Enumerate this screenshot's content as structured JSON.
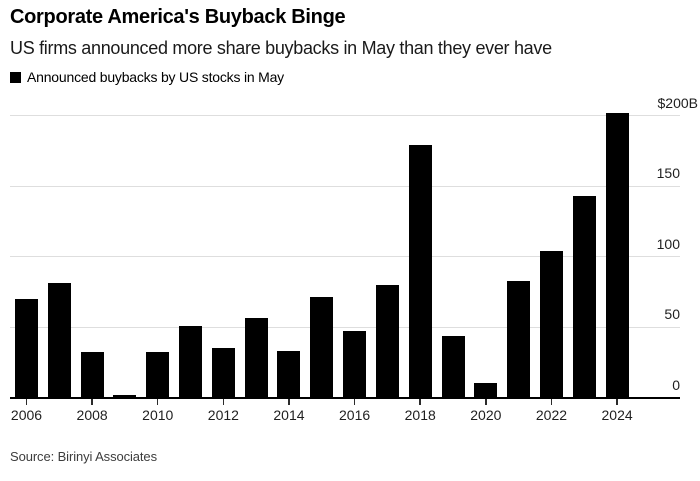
{
  "header": {
    "title": "Corporate America's Buyback Binge",
    "subtitle": "US firms announced more share buybacks in May than they ever have"
  },
  "legend": {
    "label": "Announced buybacks by US stocks in May",
    "swatch_color": "#000000"
  },
  "source": {
    "text": "Source: Birinyi Associates"
  },
  "chart_data": {
    "type": "bar",
    "title": "Announced buybacks by US stocks in May",
    "xlabel": "",
    "ylabel": "$200B",
    "unit": "$B",
    "categories": [
      2006,
      2007,
      2008,
      2009,
      2010,
      2011,
      2012,
      2013,
      2014,
      2015,
      2016,
      2017,
      2018,
      2019,
      2020,
      2021,
      2022,
      2023,
      2024
    ],
    "values": [
      70,
      81,
      32,
      2,
      32.5,
      51,
      35,
      56.5,
      33,
      71,
      47.5,
      79.5,
      179,
      44,
      10,
      82.5,
      104,
      143,
      202
    ],
    "series_name": "Announced buybacks by US stocks in May",
    "ylim": [
      0,
      200
    ],
    "y_ticks": [
      {
        "label": "$200B",
        "value": 200
      },
      {
        "label": "150",
        "value": 150
      },
      {
        "label": "100",
        "value": 100
      },
      {
        "label": "50",
        "value": 50
      },
      {
        "label": "0",
        "value": 0
      }
    ],
    "x_ticks": [
      "2006",
      "2008",
      "2010",
      "2012",
      "2014",
      "2016",
      "2018",
      "2020",
      "2022",
      "2024"
    ],
    "grid": true,
    "legend_position": "top-left",
    "value_axis_side": "right",
    "bar_color": "#000000",
    "gridline_color": "#dedede",
    "axis_color": "#000000",
    "background_color": "#ffffff"
  }
}
